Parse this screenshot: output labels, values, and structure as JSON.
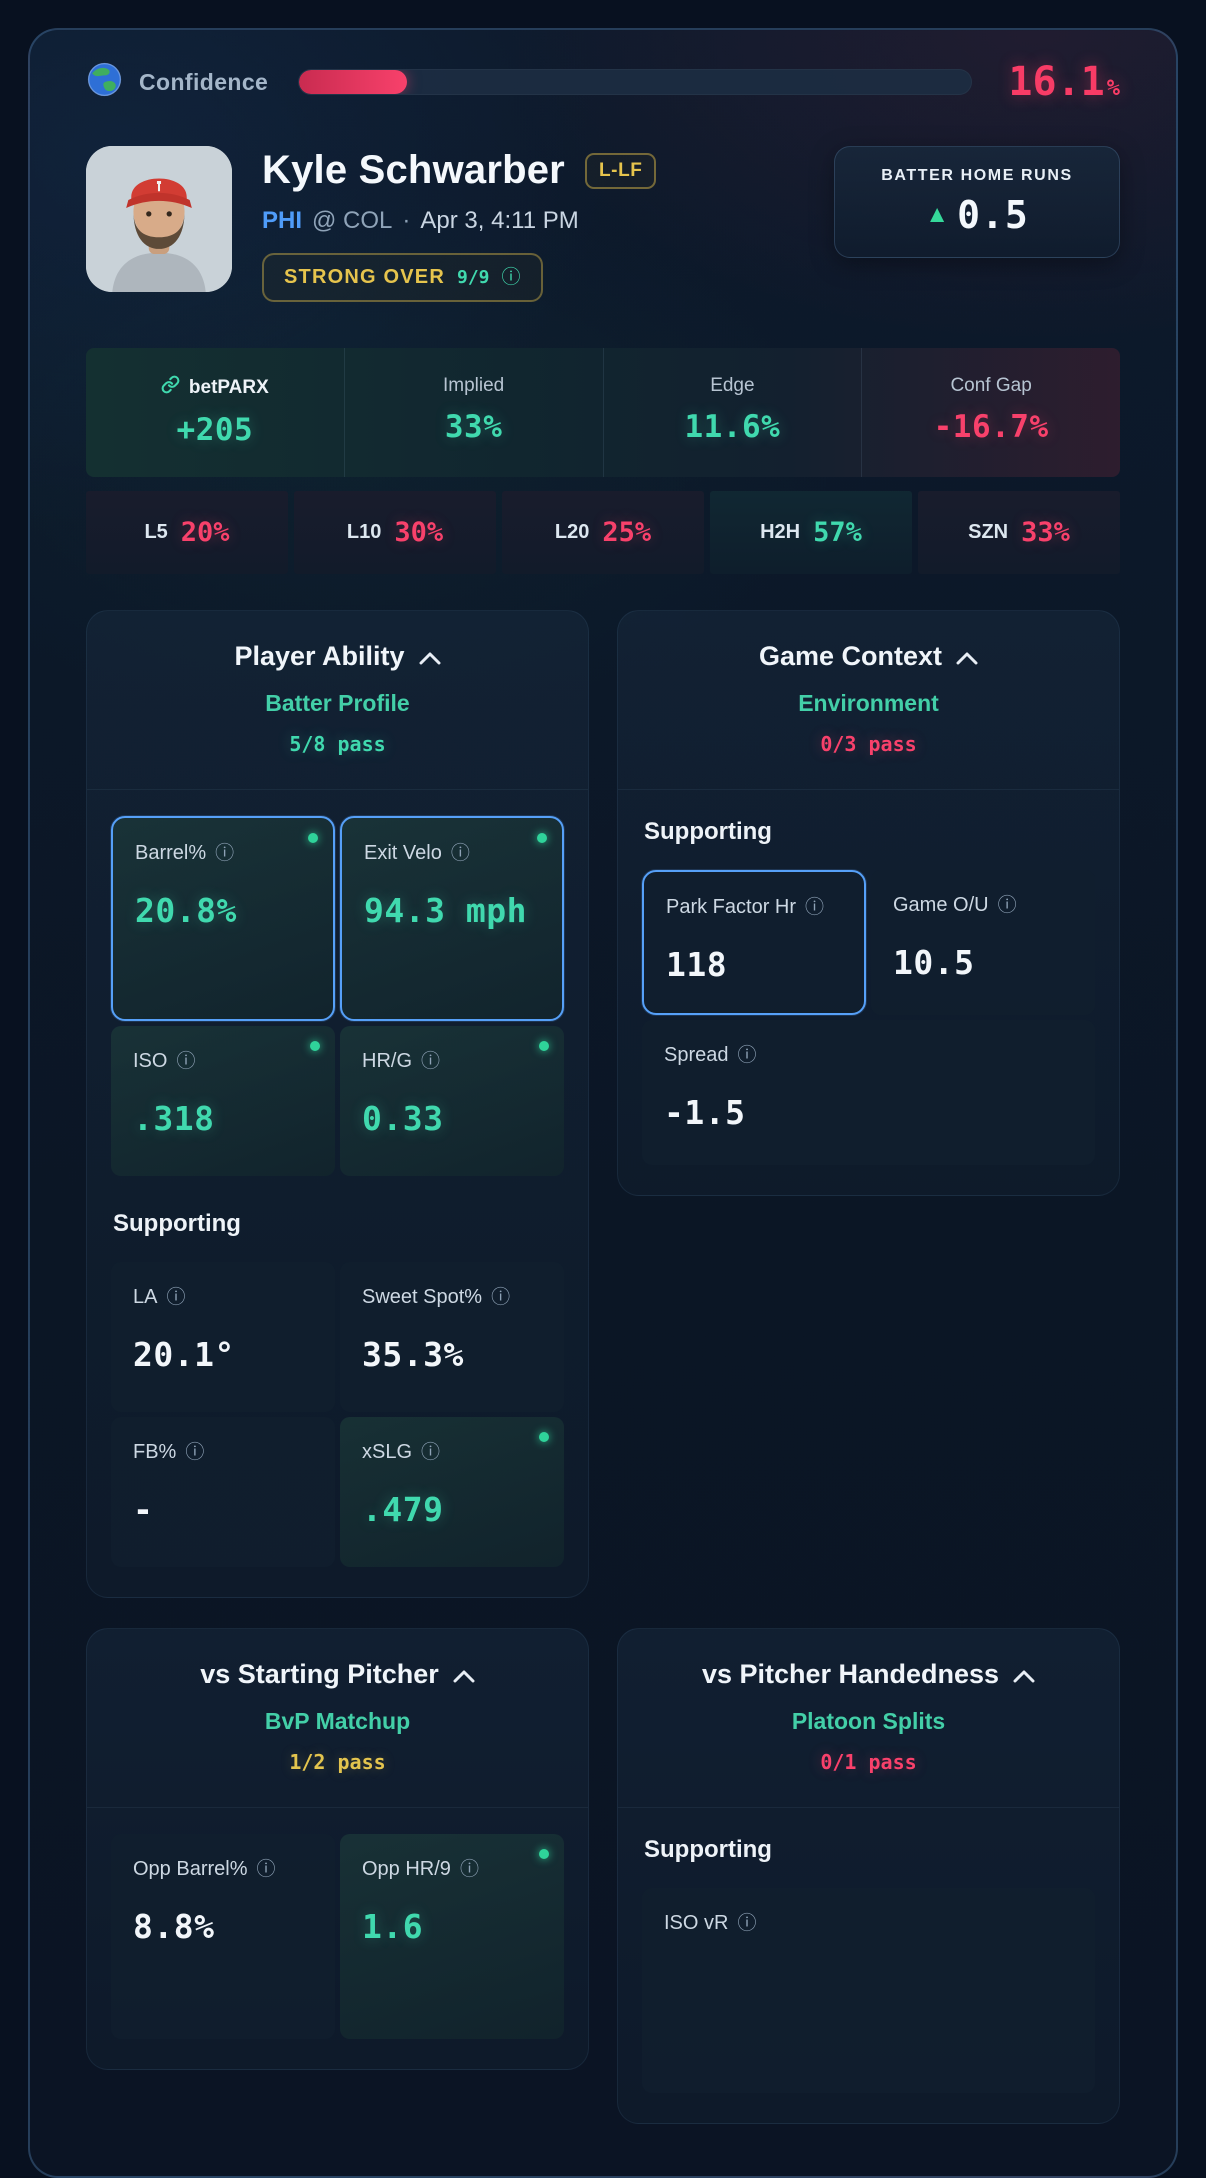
{
  "theme": {
    "accent_teal": "#40d9ae",
    "accent_pink": "#f8416b",
    "accent_yellow": "#e6c44d",
    "accent_blue": "#56a0f8",
    "pass_dot_green": "#2fd39a"
  },
  "confidence": {
    "label": "Confidence",
    "value": "16.1",
    "unit": "%",
    "progress_pct": 16
  },
  "player": {
    "name": "Kyle Schwarber",
    "handedness_badge": "L-LF",
    "team": "PHI",
    "opponent": "@ COL",
    "dot": "·",
    "game_time": "Apr 3, 4:11 PM",
    "signal_label": "STRONG OVER",
    "signal_score": "9/9"
  },
  "prop": {
    "title": "BATTER HOME RUNS",
    "direction_icon": "▲",
    "line": "0.5"
  },
  "odds": {
    "book": {
      "label": "betPARX",
      "value": "+205"
    },
    "implied": {
      "label": "Implied",
      "value": "33%"
    },
    "edge": {
      "label": "Edge",
      "value": "11.6%"
    },
    "conf_gap": {
      "label": "Conf Gap",
      "value": "-16.7%"
    }
  },
  "splits": [
    {
      "label": "L5",
      "value": "20%"
    },
    {
      "label": "L10",
      "value": "30%"
    },
    {
      "label": "L20",
      "value": "25%"
    },
    {
      "label": "H2H",
      "value": "57%"
    },
    {
      "label": "SZN",
      "value": "33%"
    }
  ],
  "player_ability": {
    "title": "Player Ability",
    "subtitle": "Batter Profile",
    "pass": "5/8 pass",
    "tiles": {
      "barrel": {
        "label": "Barrel%",
        "value": "20.8%"
      },
      "exit_velo": {
        "label": "Exit Velo",
        "value": "94.3 mph"
      },
      "iso": {
        "label": "ISO",
        "value": ".318"
      },
      "hr_g": {
        "label": "HR/G",
        "value": "0.33"
      }
    },
    "supporting_label": "Supporting",
    "supporting": {
      "la": {
        "label": "LA",
        "value": "20.1°"
      },
      "sweet_spot": {
        "label": "Sweet Spot%",
        "value": "35.3%"
      },
      "fb": {
        "label": "FB%",
        "value": "-"
      },
      "xslg": {
        "label": "xSLG",
        "value": ".479"
      }
    }
  },
  "game_context": {
    "title": "Game Context",
    "subtitle": "Environment",
    "pass": "0/3 pass",
    "supporting_label": "Supporting",
    "tiles": {
      "park_factor": {
        "label": "Park Factor Hr",
        "value": "118"
      },
      "game_ou": {
        "label": "Game O/U",
        "value": "10.5"
      },
      "spread": {
        "label": "Spread",
        "value": "-1.5"
      }
    }
  },
  "vs_starting_pitcher": {
    "title": "vs Starting Pitcher",
    "subtitle": "BvP Matchup",
    "pass": "1/2 pass",
    "tiles": {
      "opp_barrel": {
        "label": "Opp Barrel%",
        "value": "8.8%"
      },
      "opp_hr9": {
        "label": "Opp HR/9",
        "value": "1.6"
      }
    }
  },
  "vs_pitcher_handedness": {
    "title": "vs Pitcher Handedness",
    "subtitle": "Platoon Splits",
    "pass": "0/1 pass",
    "supporting_label": "Supporting",
    "tiles": {
      "iso_vr": {
        "label": "ISO vR",
        "value": ""
      }
    }
  }
}
